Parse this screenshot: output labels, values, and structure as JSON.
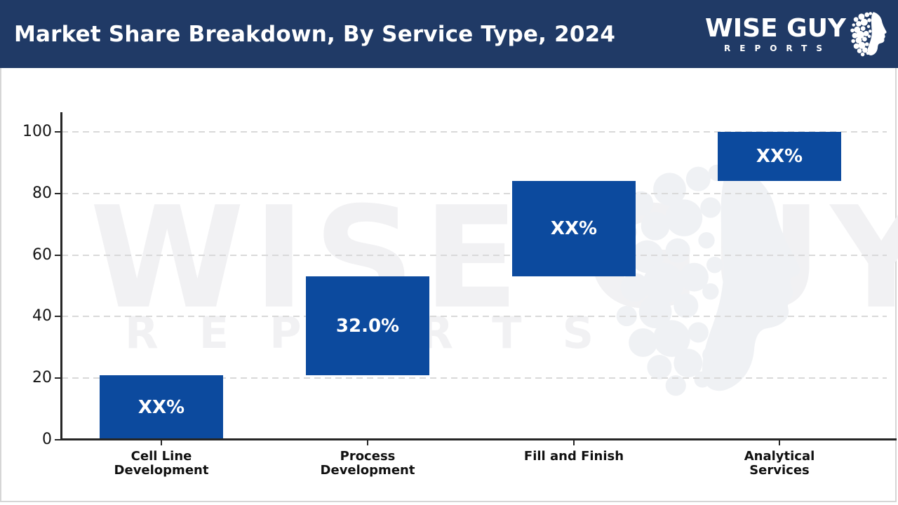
{
  "header": {
    "title": "Market Share Breakdown, By Service Type, 2024",
    "logo_line1": "WISE GUY",
    "logo_line2": "REPORTS"
  },
  "watermark": {
    "line1": "WISE GUY",
    "line2": "REPORTS"
  },
  "colors": {
    "header_bg": "#203a66",
    "bar": "#0c4a9e",
    "grid": "#d9d9d9",
    "axis": "#262626",
    "tick_label": "#141414",
    "bar_label": "#ffffff",
    "watermark": "#f1f1f3"
  },
  "chart_data": {
    "type": "bar",
    "subtype": "floating-waterfall",
    "title": "Market Share Breakdown, By Service Type, 2024",
    "categories": [
      "Cell Line Development",
      "Process Development",
      "Fill and Finish",
      "Analytical Services"
    ],
    "category_label_lines": [
      [
        "Cell Line",
        "Development"
      ],
      [
        "Process",
        "Development"
      ],
      [
        "Fill and Finish"
      ],
      [
        "Analytical",
        "Services"
      ]
    ],
    "series": [
      {
        "name": "Market Share (%)",
        "segments": [
          {
            "category": "Cell Line Development",
            "start": 0,
            "end": 21,
            "value": 21,
            "label": "XX%"
          },
          {
            "category": "Process Development",
            "start": 21,
            "end": 53,
            "value": 32,
            "label": "32.0%"
          },
          {
            "category": "Fill and Finish",
            "start": 53,
            "end": 84,
            "value": 31,
            "label": "XX%"
          },
          {
            "category": "Analytical Services",
            "start": 84,
            "end": 100,
            "value": 16,
            "label": "XX%"
          }
        ]
      }
    ],
    "xlabel": "",
    "ylabel": "",
    "y_ticks": [
      0,
      20,
      40,
      60,
      80,
      100
    ],
    "ylim": [
      0,
      106
    ],
    "grid": "horizontal-dashed",
    "legend": "none"
  }
}
